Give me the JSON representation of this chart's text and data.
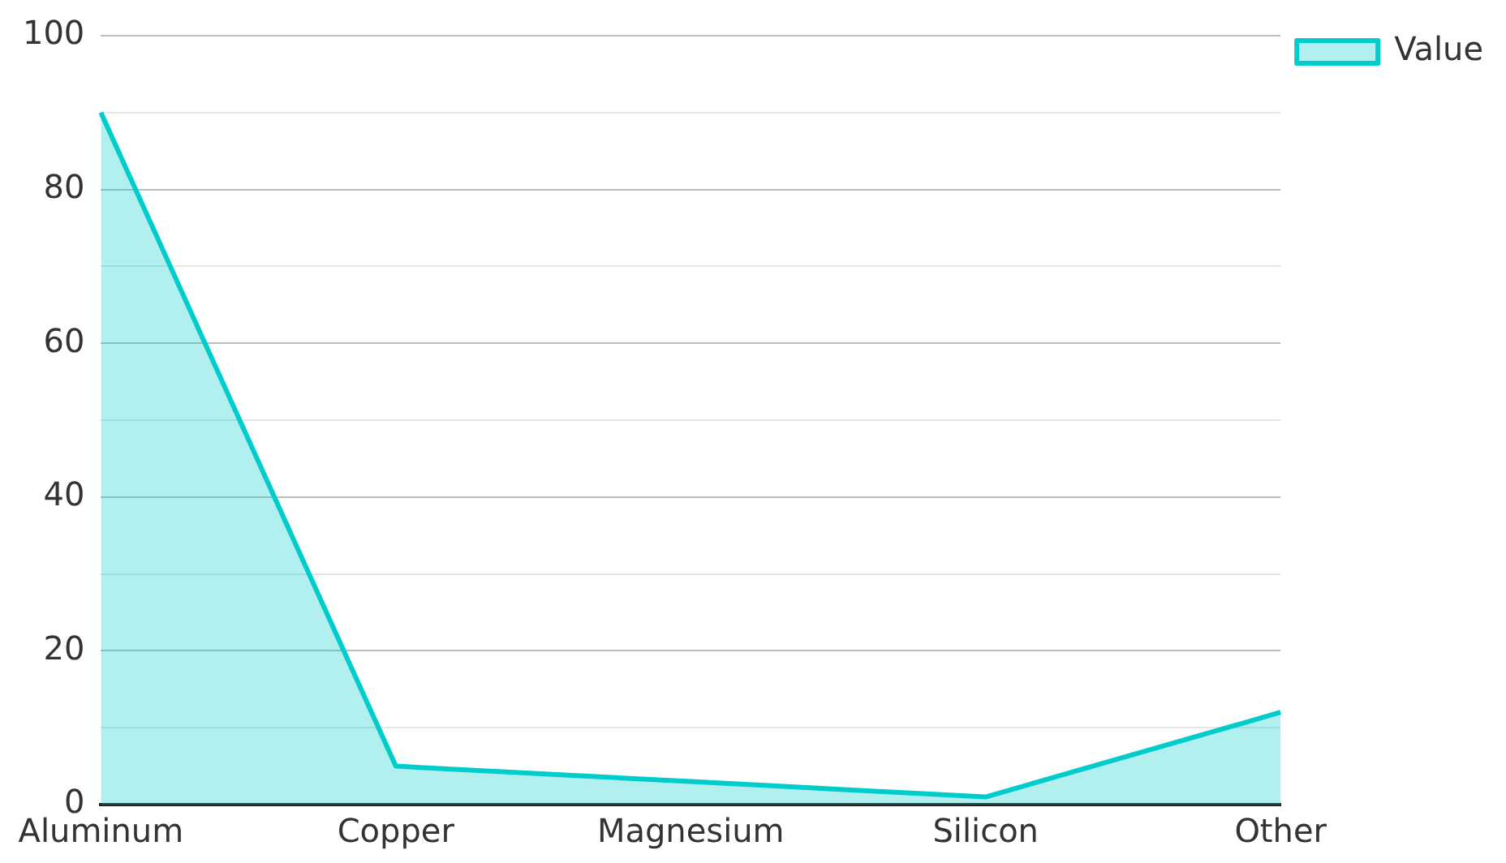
{
  "chart_data": {
    "type": "area",
    "categories": [
      "Aluminum",
      "Copper",
      "Magnesium",
      "Silicon",
      "Other"
    ],
    "series": [
      {
        "name": "Value",
        "color": "#00cccc",
        "values": [
          90,
          5,
          3,
          1,
          12
        ]
      }
    ],
    "ylim": [
      0,
      100
    ],
    "yticks": [
      0,
      {
        "value": 10,
        "label": null
      },
      20,
      {
        "value": 30,
        "label": null
      },
      40,
      {
        "value": 50,
        "label": null
      },
      60,
      {
        "value": 70,
        "label": null
      },
      80,
      {
        "value": 90,
        "label": null
      },
      100
    ],
    "grid": "y",
    "legend": "top right"
  }
}
